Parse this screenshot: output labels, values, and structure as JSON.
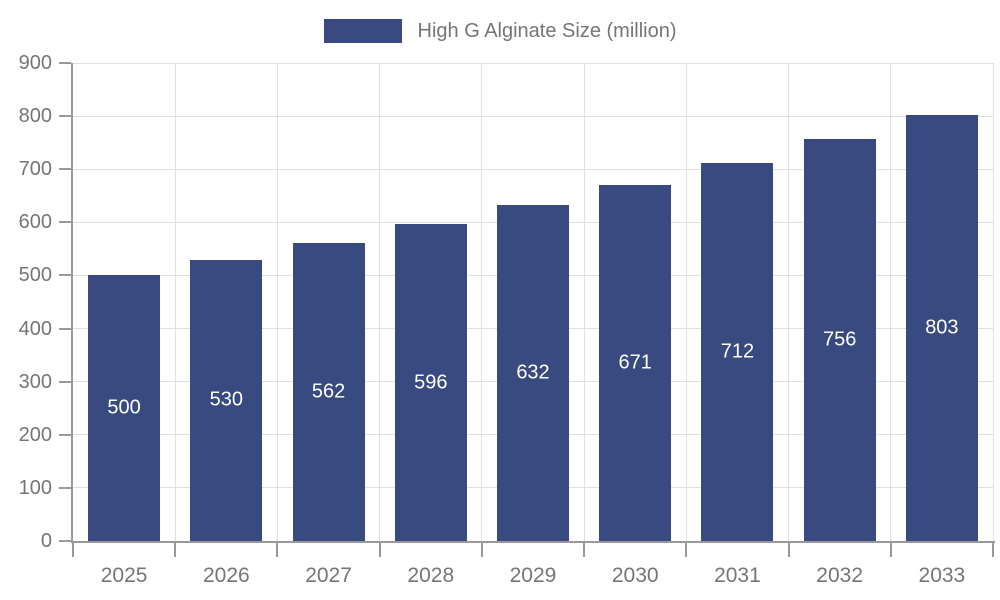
{
  "chart_data": {
    "type": "bar",
    "title": "High G Alginate Size (million)",
    "legend": [
      "High G Alginate Size (million)"
    ],
    "legend_position": "top",
    "categories": [
      "2025",
      "2026",
      "2027",
      "2028",
      "2029",
      "2030",
      "2031",
      "2032",
      "2033"
    ],
    "values": [
      500,
      530,
      562,
      596,
      632,
      671,
      712,
      756,
      803
    ],
    "xlabel": "",
    "ylabel": "",
    "ylim": [
      0,
      900
    ],
    "ytick_step": 100,
    "yticks": [
      0,
      100,
      200,
      300,
      400,
      500,
      600,
      700,
      800,
      900
    ],
    "grid": true,
    "bar_color": "#394A80",
    "value_label_color": "#FFFFFF",
    "axis_line_color": "#999999",
    "grid_color": "#E0E0E0",
    "text_color": "#757575"
  }
}
